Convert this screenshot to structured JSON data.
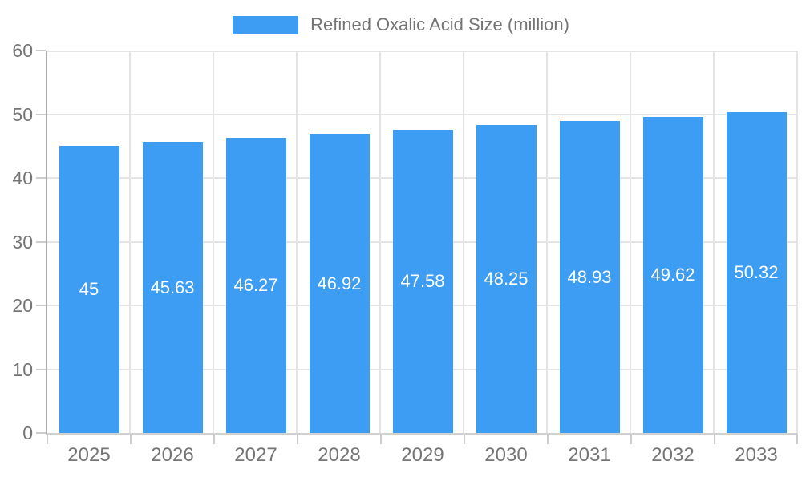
{
  "chart_data": {
    "type": "bar",
    "title": "",
    "legend": "Refined Oxalic Acid Size (million)",
    "legend_position": "top-center",
    "categories": [
      "2025",
      "2026",
      "2027",
      "2028",
      "2029",
      "2030",
      "2031",
      "2032",
      "2033"
    ],
    "series": [
      {
        "name": "Refined Oxalic Acid Size (million)",
        "values": [
          45,
          45.63,
          46.27,
          46.92,
          47.58,
          48.25,
          48.93,
          49.62,
          50.32
        ],
        "value_labels": [
          "45",
          "45.63",
          "46.27",
          "46.92",
          "47.58",
          "48.25",
          "48.93",
          "49.62",
          "50.32"
        ]
      }
    ],
    "xlabel": "",
    "ylabel": "",
    "ylim": [
      0,
      60
    ],
    "yticks": [
      0,
      10,
      20,
      30,
      40,
      50,
      60
    ],
    "grid": true,
    "colors": {
      "bar": "#3d9df3",
      "value_label": "#ffffff",
      "axis_text": "#757575",
      "gridline": "#e4e4e4",
      "axis_line": "#adadad"
    }
  }
}
